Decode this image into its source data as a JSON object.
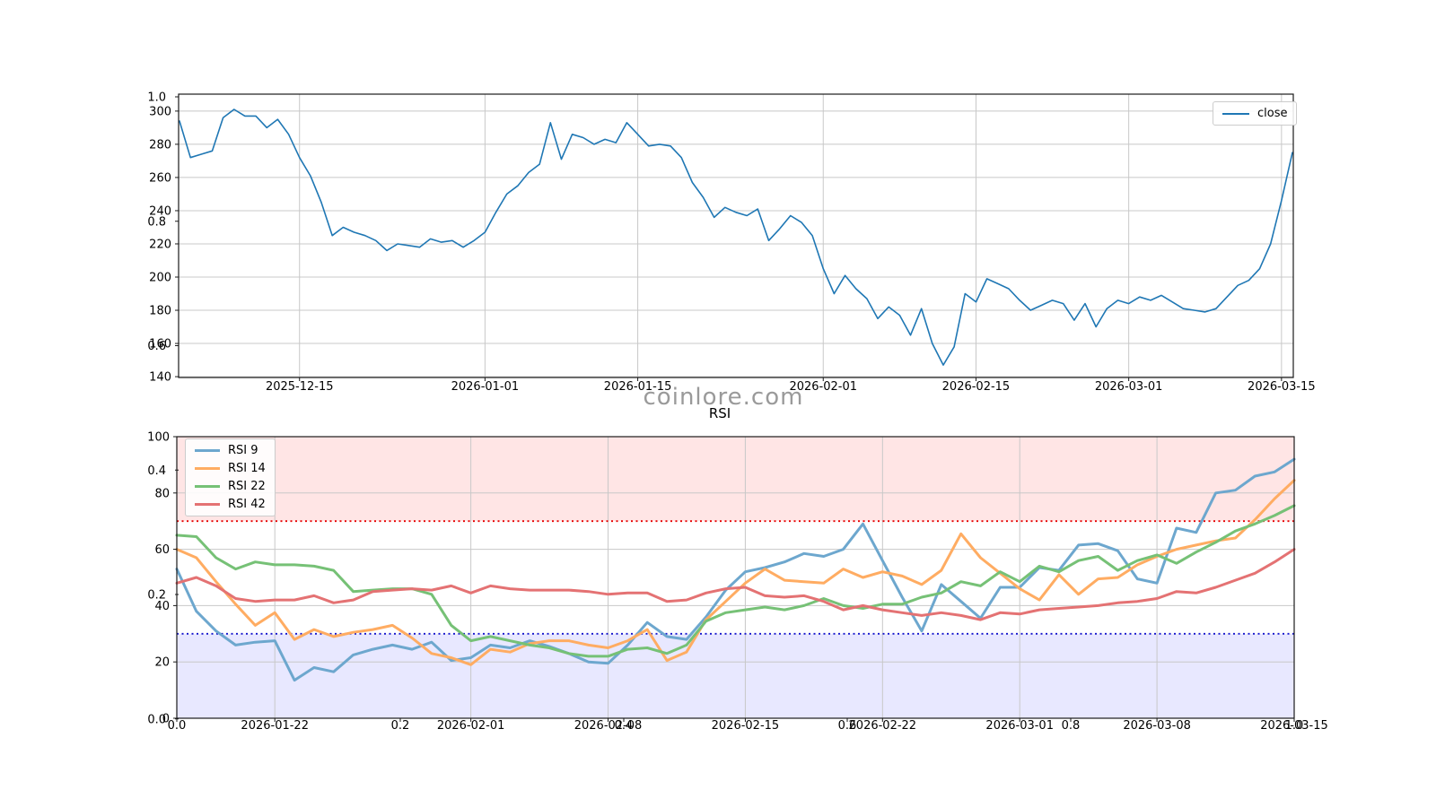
{
  "watermark": "coinlore.com",
  "chart_data": [
    {
      "name": "price-panel",
      "type": "line",
      "grid": true,
      "legend_position": "upper right",
      "ylim": [
        139.5,
        310.2
      ],
      "y_ticks": [
        140,
        160,
        180,
        200,
        220,
        240,
        260,
        280,
        300
      ],
      "x_range": [
        "2025-12-04",
        "2026-03-16"
      ],
      "x_ticks": [
        {
          "i": 11,
          "label": "2025-12-15"
        },
        {
          "i": 28,
          "label": "2026-01-01"
        },
        {
          "i": 42,
          "label": "2026-01-15"
        },
        {
          "i": 59,
          "label": "2026-02-01"
        },
        {
          "i": 73,
          "label": "2026-02-15"
        },
        {
          "i": 87,
          "label": "2026-03-01"
        },
        {
          "i": 101,
          "label": "2026-03-15"
        }
      ],
      "series": [
        {
          "name": "close",
          "color": "#1f77b4",
          "line_width": 1.6,
          "values": [
            294,
            272,
            274,
            276,
            296,
            301,
            297,
            297,
            290,
            295,
            286,
            272,
            261,
            245,
            225,
            230,
            227,
            225,
            222,
            216,
            220,
            219,
            218,
            223,
            221,
            222,
            218,
            222,
            227,
            239,
            250,
            255,
            263,
            268,
            293,
            271,
            286,
            284,
            280,
            283,
            281,
            293,
            286,
            279,
            280,
            279,
            272,
            257,
            248,
            236,
            242,
            239,
            237,
            241,
            222,
            229,
            237,
            233,
            225,
            205,
            190,
            201,
            193,
            187,
            175,
            182,
            177,
            165,
            181,
            160,
            147,
            158,
            190,
            185,
            199,
            196,
            193,
            186,
            180,
            183,
            186,
            184,
            174,
            184,
            170,
            181,
            186,
            184,
            188,
            186,
            189,
            185,
            181,
            180,
            179,
            181,
            188,
            195,
            198,
            205,
            220,
            246,
            275
          ]
        }
      ]
    },
    {
      "name": "rsi-panel",
      "title": "RSI",
      "type": "line",
      "grid": true,
      "legend_position": "upper left",
      "ylim": [
        0,
        100
      ],
      "y_ticks": [
        0,
        20,
        40,
        60,
        80,
        100
      ],
      "x_range": [
        "2026-01-17",
        "2026-03-15"
      ],
      "x_ticks": [
        {
          "i": 5,
          "label": "2026-01-22"
        },
        {
          "i": 15,
          "label": "2026-02-01"
        },
        {
          "i": 22,
          "label": "2026-02-08"
        },
        {
          "i": 29,
          "label": "2026-02-15"
        },
        {
          "i": 36,
          "label": "2026-02-22"
        },
        {
          "i": 43,
          "label": "2026-03-01"
        },
        {
          "i": 50,
          "label": "2026-03-08"
        },
        {
          "i": 57,
          "label": "2026-03-15"
        }
      ],
      "bands": [
        {
          "from": 70,
          "to": 100,
          "color": "rgba(255,0,0,0.10)",
          "name": "overbought-zone"
        },
        {
          "from": 0,
          "to": 30,
          "color": "rgba(0,0,255,0.09)",
          "name": "oversold-zone"
        }
      ],
      "hlines": [
        {
          "y": 70,
          "color": "#e60000",
          "name": "overbought-threshold"
        },
        {
          "y": 30,
          "color": "#1414cc",
          "name": "oversold-threshold"
        }
      ],
      "series": [
        {
          "name": "RSI 9",
          "color": "#6da7ce",
          "line_width": 3,
          "values": [
            53,
            38,
            31,
            26,
            27,
            27.5,
            13.5,
            18,
            16.5,
            22.5,
            24.5,
            26,
            24.5,
            27,
            20.5,
            21.5,
            26,
            25,
            27.5,
            25.5,
            23,
            20,
            19.5,
            26,
            34,
            29,
            28,
            36,
            45.5,
            52,
            53.5,
            55.5,
            58.5,
            57.5,
            60,
            69,
            56,
            43,
            31,
            47.5,
            41.5,
            35.5,
            46.5,
            46.5,
            53.5,
            52.5,
            61.5,
            62,
            59.5,
            49.5,
            48,
            67.5,
            66,
            80,
            81,
            86,
            87.5,
            92
          ]
        },
        {
          "name": "RSI 14",
          "color": "#ffac62",
          "line_width": 3,
          "values": [
            60,
            57,
            48.5,
            40.5,
            33,
            37.5,
            28,
            31.5,
            29,
            30.5,
            31.5,
            33,
            28.5,
            23,
            21.5,
            19,
            24.5,
            23.5,
            26.5,
            27.5,
            27.5,
            26,
            25,
            27.5,
            31.5,
            20.5,
            23.5,
            35,
            41.5,
            48,
            53,
            49,
            48.5,
            48,
            53,
            50,
            52,
            50.5,
            47.5,
            52.5,
            65.5,
            57,
            51.5,
            46,
            42,
            51,
            44,
            49.5,
            50,
            54.5,
            57.5,
            60,
            61.5,
            63,
            64,
            70.5,
            78,
            84.5
          ]
        },
        {
          "name": "RSI 22",
          "color": "#76c176",
          "line_width": 3,
          "values": [
            65,
            64.5,
            57,
            53,
            55.5,
            54.5,
            54.5,
            54,
            52.5,
            45,
            45.5,
            46,
            46,
            44,
            33,
            27.5,
            29,
            27.5,
            26,
            25,
            23,
            22,
            22,
            24.5,
            25,
            23,
            26,
            34.5,
            37.5,
            38.5,
            39.5,
            38.5,
            40,
            42.5,
            40,
            39,
            40.5,
            40.5,
            43,
            44.5,
            48.5,
            47,
            52,
            48.5,
            54,
            52,
            56,
            57.5,
            52.5,
            56,
            58,
            55,
            59,
            62.5,
            66.5,
            69,
            72,
            75.5
          ]
        },
        {
          "name": "RSI 42",
          "color": "#e47273",
          "line_width": 3,
          "values": [
            48,
            50,
            47,
            42.5,
            41.5,
            42,
            42,
            43.5,
            41,
            42,
            45,
            45.5,
            46,
            45.5,
            47,
            44.5,
            47,
            46,
            45.5,
            45.5,
            45.5,
            45,
            44,
            44.5,
            44.5,
            41.5,
            42,
            44.5,
            46,
            46.5,
            43.5,
            43,
            43.5,
            41.5,
            38.5,
            40,
            38.5,
            37.5,
            36.5,
            37.5,
            36.5,
            35,
            37.5,
            37,
            38.5,
            39,
            39.5,
            40,
            41,
            41.5,
            42.5,
            45,
            44.5,
            46.5,
            49,
            51.5,
            55.5,
            60
          ]
        }
      ]
    }
  ],
  "overlay_axis_labels": {
    "y_labels": [
      "1.0",
      "0.8",
      "0.6",
      "0.4",
      "0.2",
      "0.0"
    ],
    "x_labels": [
      "0.0",
      "0.2",
      "0.4",
      "0.6",
      "0.8",
      "1.0"
    ]
  },
  "style": {
    "grid_color": "#c8c8c8",
    "spine_color": "#1a1a1a",
    "tick_label_color": "#000000",
    "watermark_color": "#9a9a9a"
  }
}
